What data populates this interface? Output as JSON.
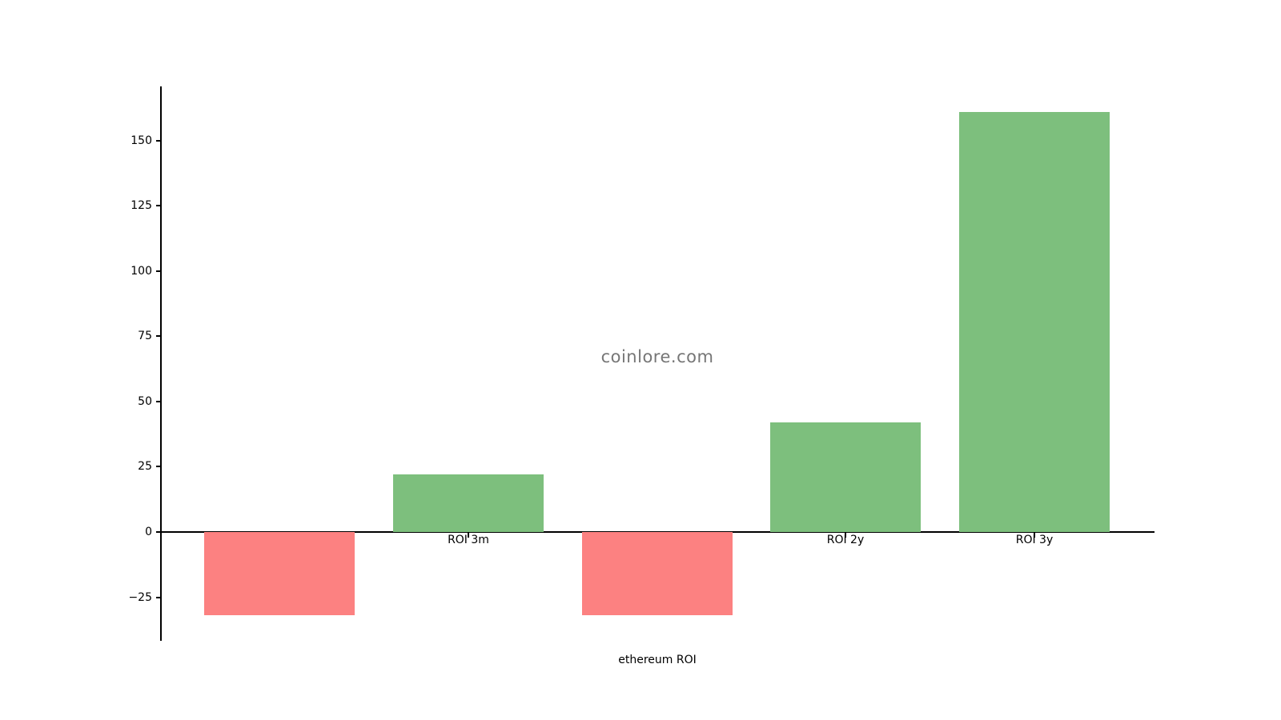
{
  "watermark": "coinlore.com",
  "colors": {
    "positive_bar": "#7dbf7d",
    "negative_bar": "#fc8181",
    "axis": "#000000",
    "text": "#000000",
    "watermark": "#767676"
  },
  "chart_data": {
    "type": "bar",
    "title": "",
    "xlabel": "ethereum ROI",
    "ylabel": "",
    "categories": [
      "",
      "ROI 3m",
      "",
      "ROI 2y",
      "ROI 3y"
    ],
    "values": [
      -32,
      22,
      -32,
      42,
      161
    ],
    "ylim": [
      -41.7,
      170.7
    ],
    "yticks": [
      150,
      125,
      100,
      75,
      50,
      25,
      0,
      -25
    ],
    "ytick_labels": [
      "150",
      "125",
      "100",
      "75",
      "50",
      "25",
      "0",
      "−25"
    ],
    "grid": false,
    "legend": false
  }
}
